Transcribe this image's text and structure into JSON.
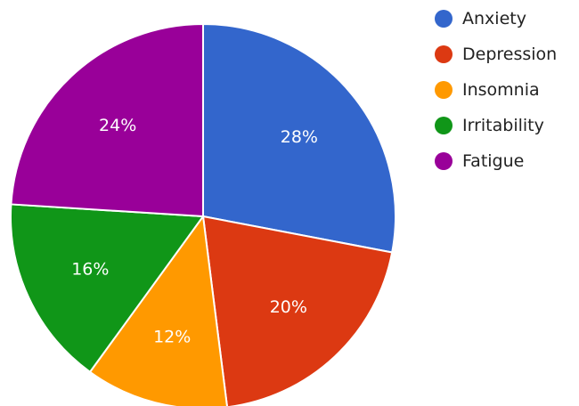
{
  "chart_data": {
    "type": "pie",
    "categories": [
      "Anxiety",
      "Depression",
      "Insomnia",
      "Irritability",
      "Fatigue"
    ],
    "values": [
      28,
      20,
      12,
      16,
      24
    ],
    "labels": [
      "28%",
      "20%",
      "12%",
      "16%",
      "24%"
    ],
    "colors": [
      "#3366cc",
      "#dc3912",
      "#ff9900",
      "#109618",
      "#990099"
    ],
    "legend_position": "right"
  }
}
